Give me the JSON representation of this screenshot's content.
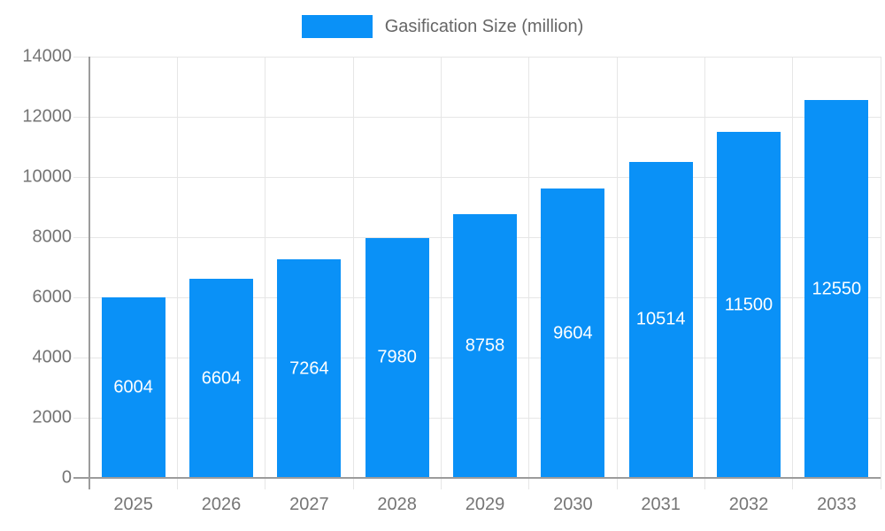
{
  "legend": {
    "label": "Gasification Size (million)"
  },
  "chart_data": {
    "type": "bar",
    "title": "",
    "categories": [
      "2025",
      "2026",
      "2027",
      "2028",
      "2029",
      "2030",
      "2031",
      "2032",
      "2033"
    ],
    "series": [
      {
        "name": "Gasification Size (million)",
        "values": [
          6004,
          6604,
          7264,
          7980,
          8758,
          9604,
          10514,
          11500,
          12550
        ]
      }
    ],
    "value_labels": [
      "6004",
      "6604",
      "7264",
      "7980",
      "8758",
      "9604",
      "10514",
      "11500",
      "12550"
    ],
    "xlabel": "",
    "ylabel": "",
    "ylim": [
      0,
      14000
    ],
    "ytick_step": 2000,
    "ytick_labels": [
      "0",
      "2000",
      "4000",
      "6000",
      "8000",
      "10000",
      "12000",
      "14000"
    ],
    "grid": true,
    "legend_position": "top-center",
    "value_label_placement": "inside-middle"
  },
  "colors": {
    "bar": "#0a91f7",
    "grid": "#e6e6e6",
    "axis": "#9c9c9c",
    "tick_text": "#757575",
    "legend_text": "#666666",
    "value_label": "#ffffff",
    "background": "#ffffff"
  }
}
